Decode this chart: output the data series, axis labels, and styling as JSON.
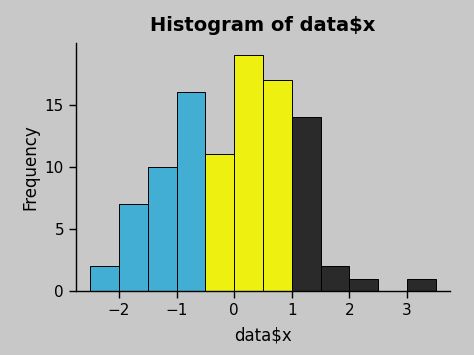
{
  "title": "Histogram of data$x",
  "xlabel": "data$x",
  "ylabel": "Frequency",
  "background_color": "#c8c8c8",
  "plot_bg_color": "#c8c8c8",
  "bar_edges": [
    -2.5,
    -2.0,
    -1.5,
    -1.0,
    -0.5,
    0.0,
    0.5,
    1.0,
    1.5,
    2.0,
    2.5,
    3.0,
    3.5
  ],
  "bar_heights": [
    2,
    7,
    10,
    16,
    11,
    19,
    17,
    14,
    2,
    1,
    0,
    1
  ],
  "bar_colors": [
    "#42aed4",
    "#42aed4",
    "#42aed4",
    "#42aed4",
    "#eef010",
    "#eef010",
    "#eef010",
    "#2a2a2a",
    "#2a2a2a",
    "#2a2a2a",
    "#2a2a2a",
    "#2a2a2a"
  ],
  "bar_edgecolor": "#000000",
  "xlim": [
    -2.75,
    3.75
  ],
  "ylim": [
    0,
    20
  ],
  "yticks": [
    0,
    5,
    10,
    15
  ],
  "xticks": [
    -2,
    -1,
    0,
    1,
    2,
    3
  ],
  "title_fontsize": 14,
  "label_fontsize": 12,
  "tick_fontsize": 11,
  "title_fontweight": "bold",
  "figsize": [
    4.74,
    3.55
  ],
  "dpi": 100
}
